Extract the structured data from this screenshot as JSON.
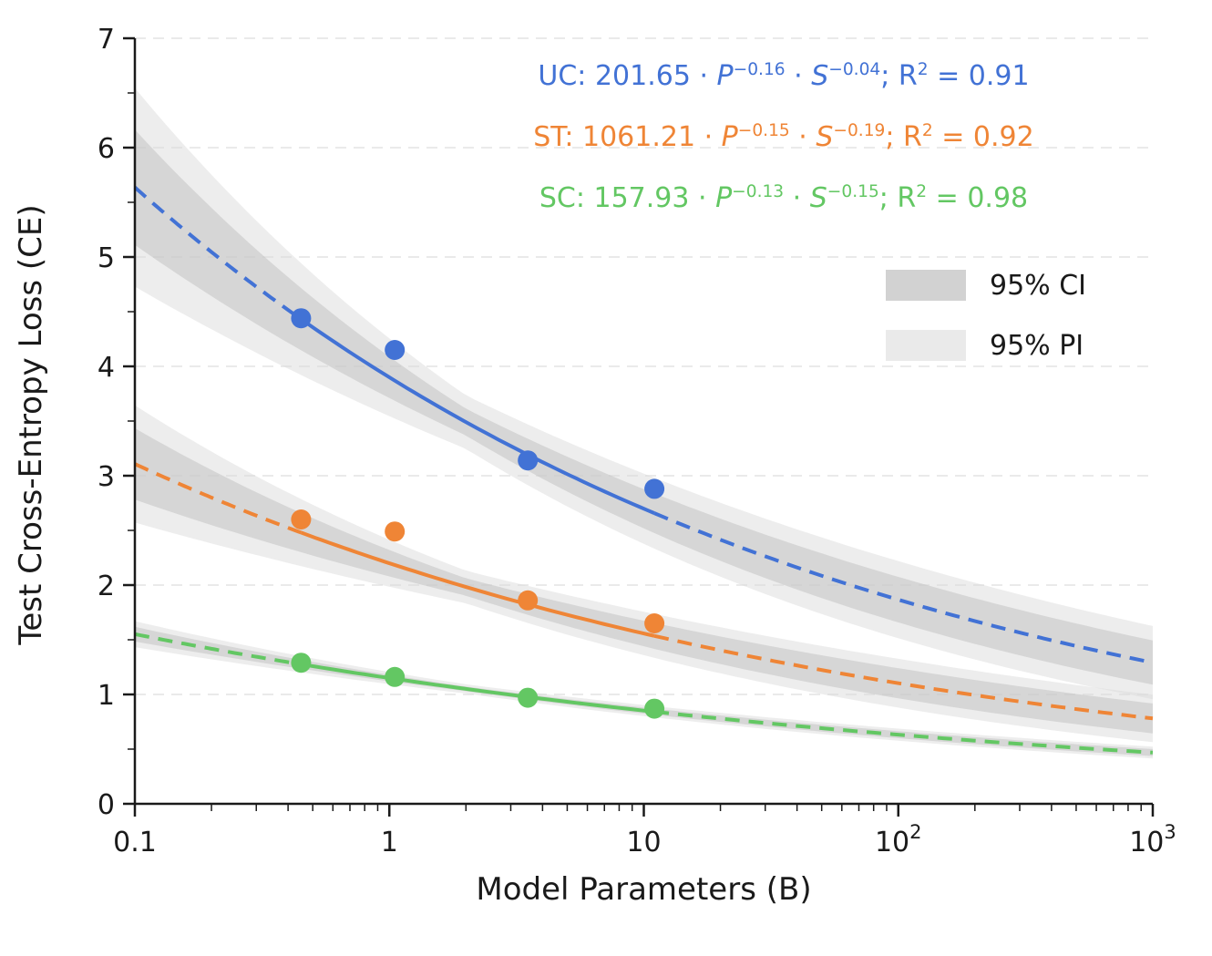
{
  "chart_data": {
    "type": "line",
    "title": "",
    "xlabel": "Model Parameters (B)",
    "ylabel": "Test Cross-Entropy Loss (CE)",
    "x_scale": "log",
    "xlim": [
      0.1,
      1000
    ],
    "ylim": [
      0,
      7
    ],
    "x_ticks": [
      {
        "value": 0.1,
        "label": "0.1"
      },
      {
        "value": 1,
        "label": "1"
      },
      {
        "value": 10,
        "label": "10"
      },
      {
        "value": 100,
        "label": "10",
        "sup": "2"
      },
      {
        "value": 1000,
        "label": "10",
        "sup": "3"
      }
    ],
    "y_ticks": [
      0,
      1,
      2,
      3,
      4,
      5,
      6,
      7
    ],
    "grid": {
      "axis": "y",
      "style": "dashed",
      "color": "#e7e7e7"
    },
    "bands": {
      "pi_color": "#dcdcdc",
      "pi_alpha": 0.5,
      "ci_color": "#c0c0c0",
      "ci_alpha": 0.5
    },
    "legend": {
      "position": "center right",
      "entries": [
        {
          "label": "95% CI",
          "swatch": "#d2d2d2"
        },
        {
          "label": "95% PI",
          "swatch": "#eaeaea"
        }
      ]
    },
    "series": [
      {
        "name": "UC",
        "color": "#4272d5",
        "equation": "UC: 201.65 * P^-0.16 * S^-0.04; R^2 = 0.91",
        "r_squared": 0.91,
        "points": {
          "x": [
            0.45,
            1.05,
            3.5,
            11
          ],
          "y": [
            4.44,
            4.15,
            3.14,
            2.88
          ]
        },
        "curve": {
          "coefficient": 3.9,
          "exponent": -0.16
        },
        "solid_range": [
          0.45,
          11
        ],
        "ci_frac": [
          0.035,
          0.045
        ],
        "pi_frac": [
          0.07,
          0.07
        ]
      },
      {
        "name": "ST",
        "color": "#ef8536",
        "equation": "ST: 1061.21 * P^-0.15 * S^-0.19; R^2 = 0.92",
        "r_squared": 0.92,
        "points": {
          "x": [
            0.45,
            1.05,
            3.5,
            11
          ],
          "y": [
            2.6,
            2.49,
            1.86,
            1.65
          ]
        },
        "curve": {
          "coefficient": 2.2,
          "exponent": -0.15
        },
        "solid_range": [
          0.45,
          11
        ],
        "ci_frac": [
          0.04,
          0.05
        ],
        "pi_frac": [
          0.075,
          0.075
        ]
      },
      {
        "name": "SC",
        "color": "#63c763",
        "equation": "SC: 157.93 * P^-0.13 * S^-0.15; R^2 = 0.98",
        "r_squared": 0.98,
        "points": {
          "x": [
            0.45,
            1.05,
            3.5,
            11
          ],
          "y": [
            1.29,
            1.16,
            0.97,
            0.87
          ]
        },
        "curve": {
          "coefficient": 1.15,
          "exponent": -0.13
        },
        "solid_range": [
          0.45,
          11
        ],
        "ci_frac": [
          0.02,
          0.018
        ],
        "pi_frac": [
          0.04,
          0.028
        ]
      }
    ]
  },
  "annotations": [
    {
      "prefix": "UC: 201.65 · ",
      "p_var": "P",
      "p_exp": "−0.16",
      "mid": " · ",
      "s_var": "S",
      "s_exp": "−0.04",
      "r_prefix": "; R",
      "r_sup": "2",
      "r_value": " = 0.91"
    },
    {
      "prefix": "ST: 1061.21 · ",
      "p_var": "P",
      "p_exp": "−0.15",
      "mid": " · ",
      "s_var": "S",
      "s_exp": "−0.19",
      "r_prefix": "; R",
      "r_sup": "2",
      "r_value": " = 0.92"
    },
    {
      "prefix": "SC: 157.93 · ",
      "p_var": "P",
      "p_exp": "−0.13",
      "mid": " · ",
      "s_var": "S",
      "s_exp": "−0.15",
      "r_prefix": "; R",
      "r_sup": "2",
      "r_value": " = 0.98"
    }
  ]
}
